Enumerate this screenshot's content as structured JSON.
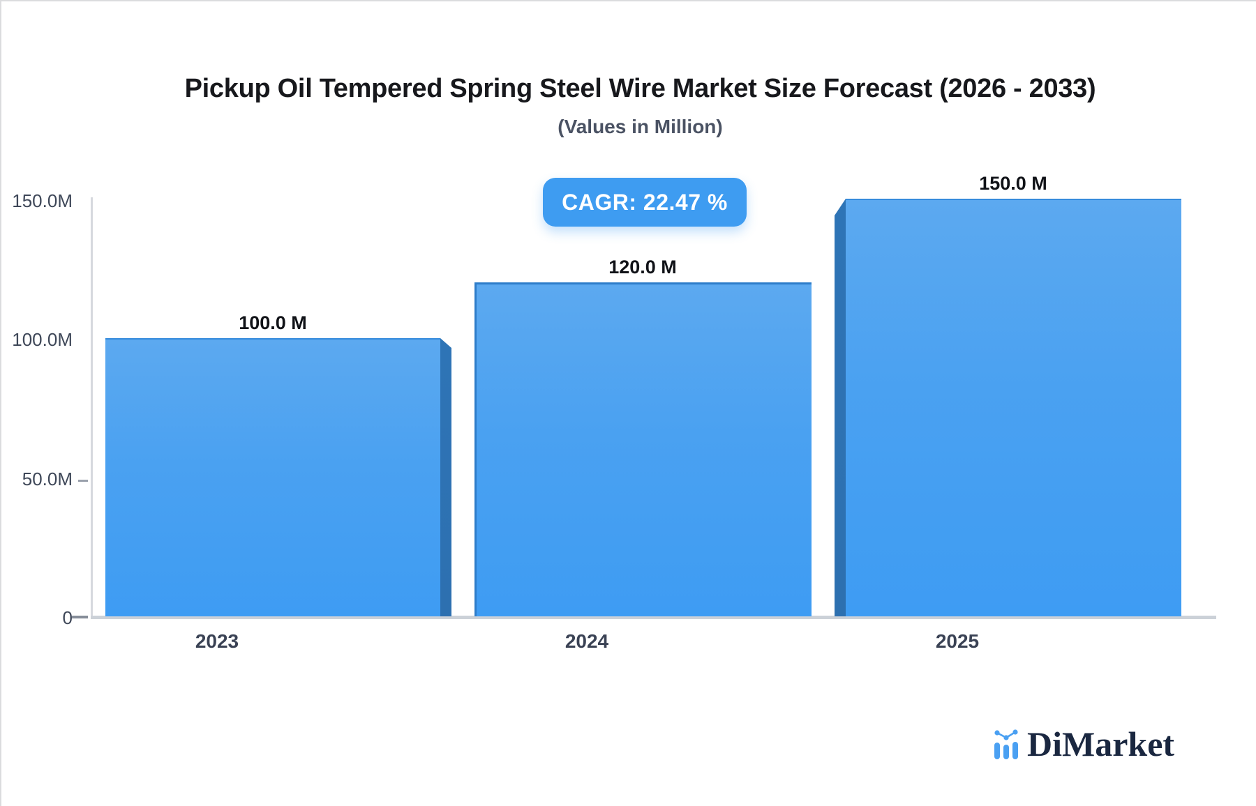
{
  "header": {
    "title": "Pickup Oil Tempered Spring Steel Wire Market Size Forecast (2026 - 2033)",
    "subtitle": "(Values in Million)"
  },
  "cagr_badge": {
    "label": "CAGR: 22.47 %"
  },
  "chart_data": {
    "type": "bar",
    "title": "Pickup Oil Tempered Spring Steel Wire Market Size Forecast (2026 - 2033)",
    "subtitle": "(Values in Million)",
    "unit": "Million",
    "categories": [
      "2023",
      "2024",
      "2025"
    ],
    "values": [
      100.0,
      120.0,
      150.0
    ],
    "value_labels": [
      "100.0 M",
      "120.0 M",
      "150.0 M"
    ],
    "cagr_percent": 22.47,
    "y_axis": {
      "tick_labels": [
        "150.0M",
        "100.0M",
        "50.0M",
        "0"
      ],
      "tick_values": [
        150,
        100,
        50,
        0
      ],
      "ylim": [
        0,
        150
      ]
    },
    "grid": false,
    "legend": false
  },
  "branding": {
    "logo_text": "DiMarket",
    "logo_icon": "bar-chart-trend-icon"
  },
  "colors": {
    "bar_fill_top": "#5ca9f0",
    "bar_fill_bottom": "#3e9cf3",
    "bar_side_shadow": "#2e74b6",
    "badge_bg": "#3e9cf1",
    "axis_line": "#d6d9de",
    "baseline": "#ccd1d8",
    "title_text": "#17181c",
    "subtitle_text": "#4a5263",
    "axis_label_text": "#3e4758",
    "logo_navy": "#1a2740",
    "background": "#ffffff"
  }
}
